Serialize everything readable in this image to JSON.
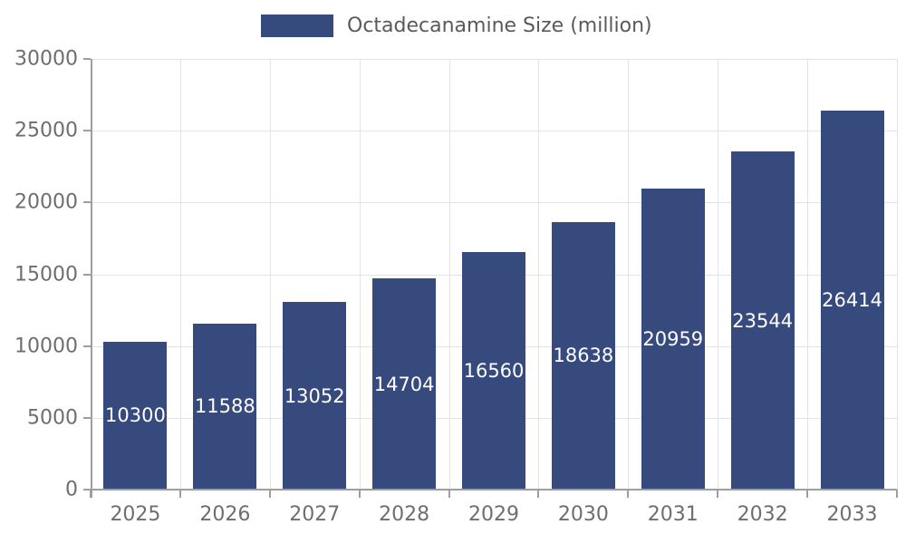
{
  "legend": {
    "label": "Octadecanamine Size (million)"
  },
  "colors": {
    "background": "#FFFFFF",
    "bar": "#364A7E",
    "legend_text": "#5A5A5A",
    "tick_text": "#6E6E6E",
    "grid_line": "#E3E3E3",
    "axis_line": "#9E9E9E",
    "value_label": "#FFFFFF"
  },
  "chart_data": {
    "type": "bar",
    "title": "Octadecanamine Size (million)",
    "categories": [
      "2025",
      "2026",
      "2027",
      "2028",
      "2029",
      "2030",
      "2031",
      "2032",
      "2033"
    ],
    "series": [
      {
        "name": "Octadecanamine Size (million)",
        "values": [
          10300,
          11588,
          13052,
          14704,
          16560,
          18638,
          20959,
          23544,
          26414
        ]
      }
    ],
    "xlabel": "",
    "ylabel": "",
    "ylim": [
      0,
      30000
    ],
    "yticks": [
      0,
      5000,
      10000,
      15000,
      20000,
      25000,
      30000
    ],
    "grid": true,
    "legend_position": "top-center",
    "value_label_position": "inside-center"
  }
}
